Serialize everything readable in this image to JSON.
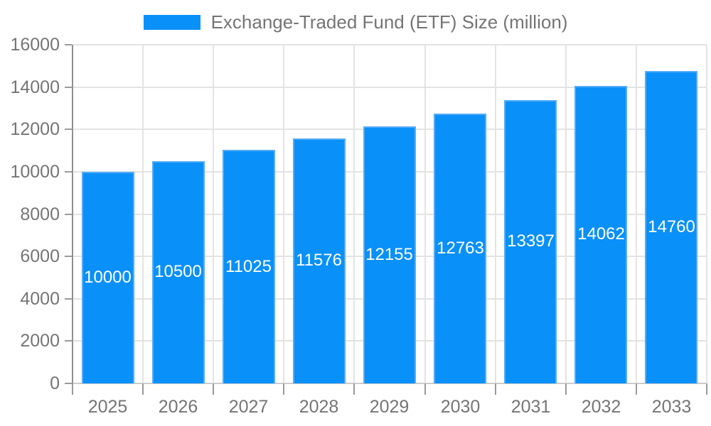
{
  "chart_data": {
    "type": "bar",
    "title": "Exchange-Traded Fund (ETF) Size (million)",
    "categories": [
      "2025",
      "2026",
      "2027",
      "2028",
      "2029",
      "2030",
      "2031",
      "2032",
      "2033"
    ],
    "values": [
      10000,
      10500,
      11025,
      11576,
      12155,
      12763,
      13397,
      14062,
      14760
    ],
    "xlabel": "",
    "ylabel": "",
    "ylim": [
      0,
      16000
    ],
    "ytick_step": 2000,
    "y_ticks": [
      "0",
      "2000",
      "4000",
      "6000",
      "8000",
      "10000",
      "12000",
      "14000",
      "16000"
    ],
    "grid": true,
    "legend_position": "top-center",
    "value_label_position": "inside-center",
    "colors": {
      "bar": "#0a90f9",
      "bar_border": "#55acf8",
      "grid": "#e3e3e3",
      "baseline": "#cccccc",
      "axis": "#8f8f8f",
      "tick": "#9a9a9a",
      "tick_label": "#757575",
      "legend_text": "#757575",
      "value_label": "#ffffff",
      "background": "#ffffff"
    }
  }
}
